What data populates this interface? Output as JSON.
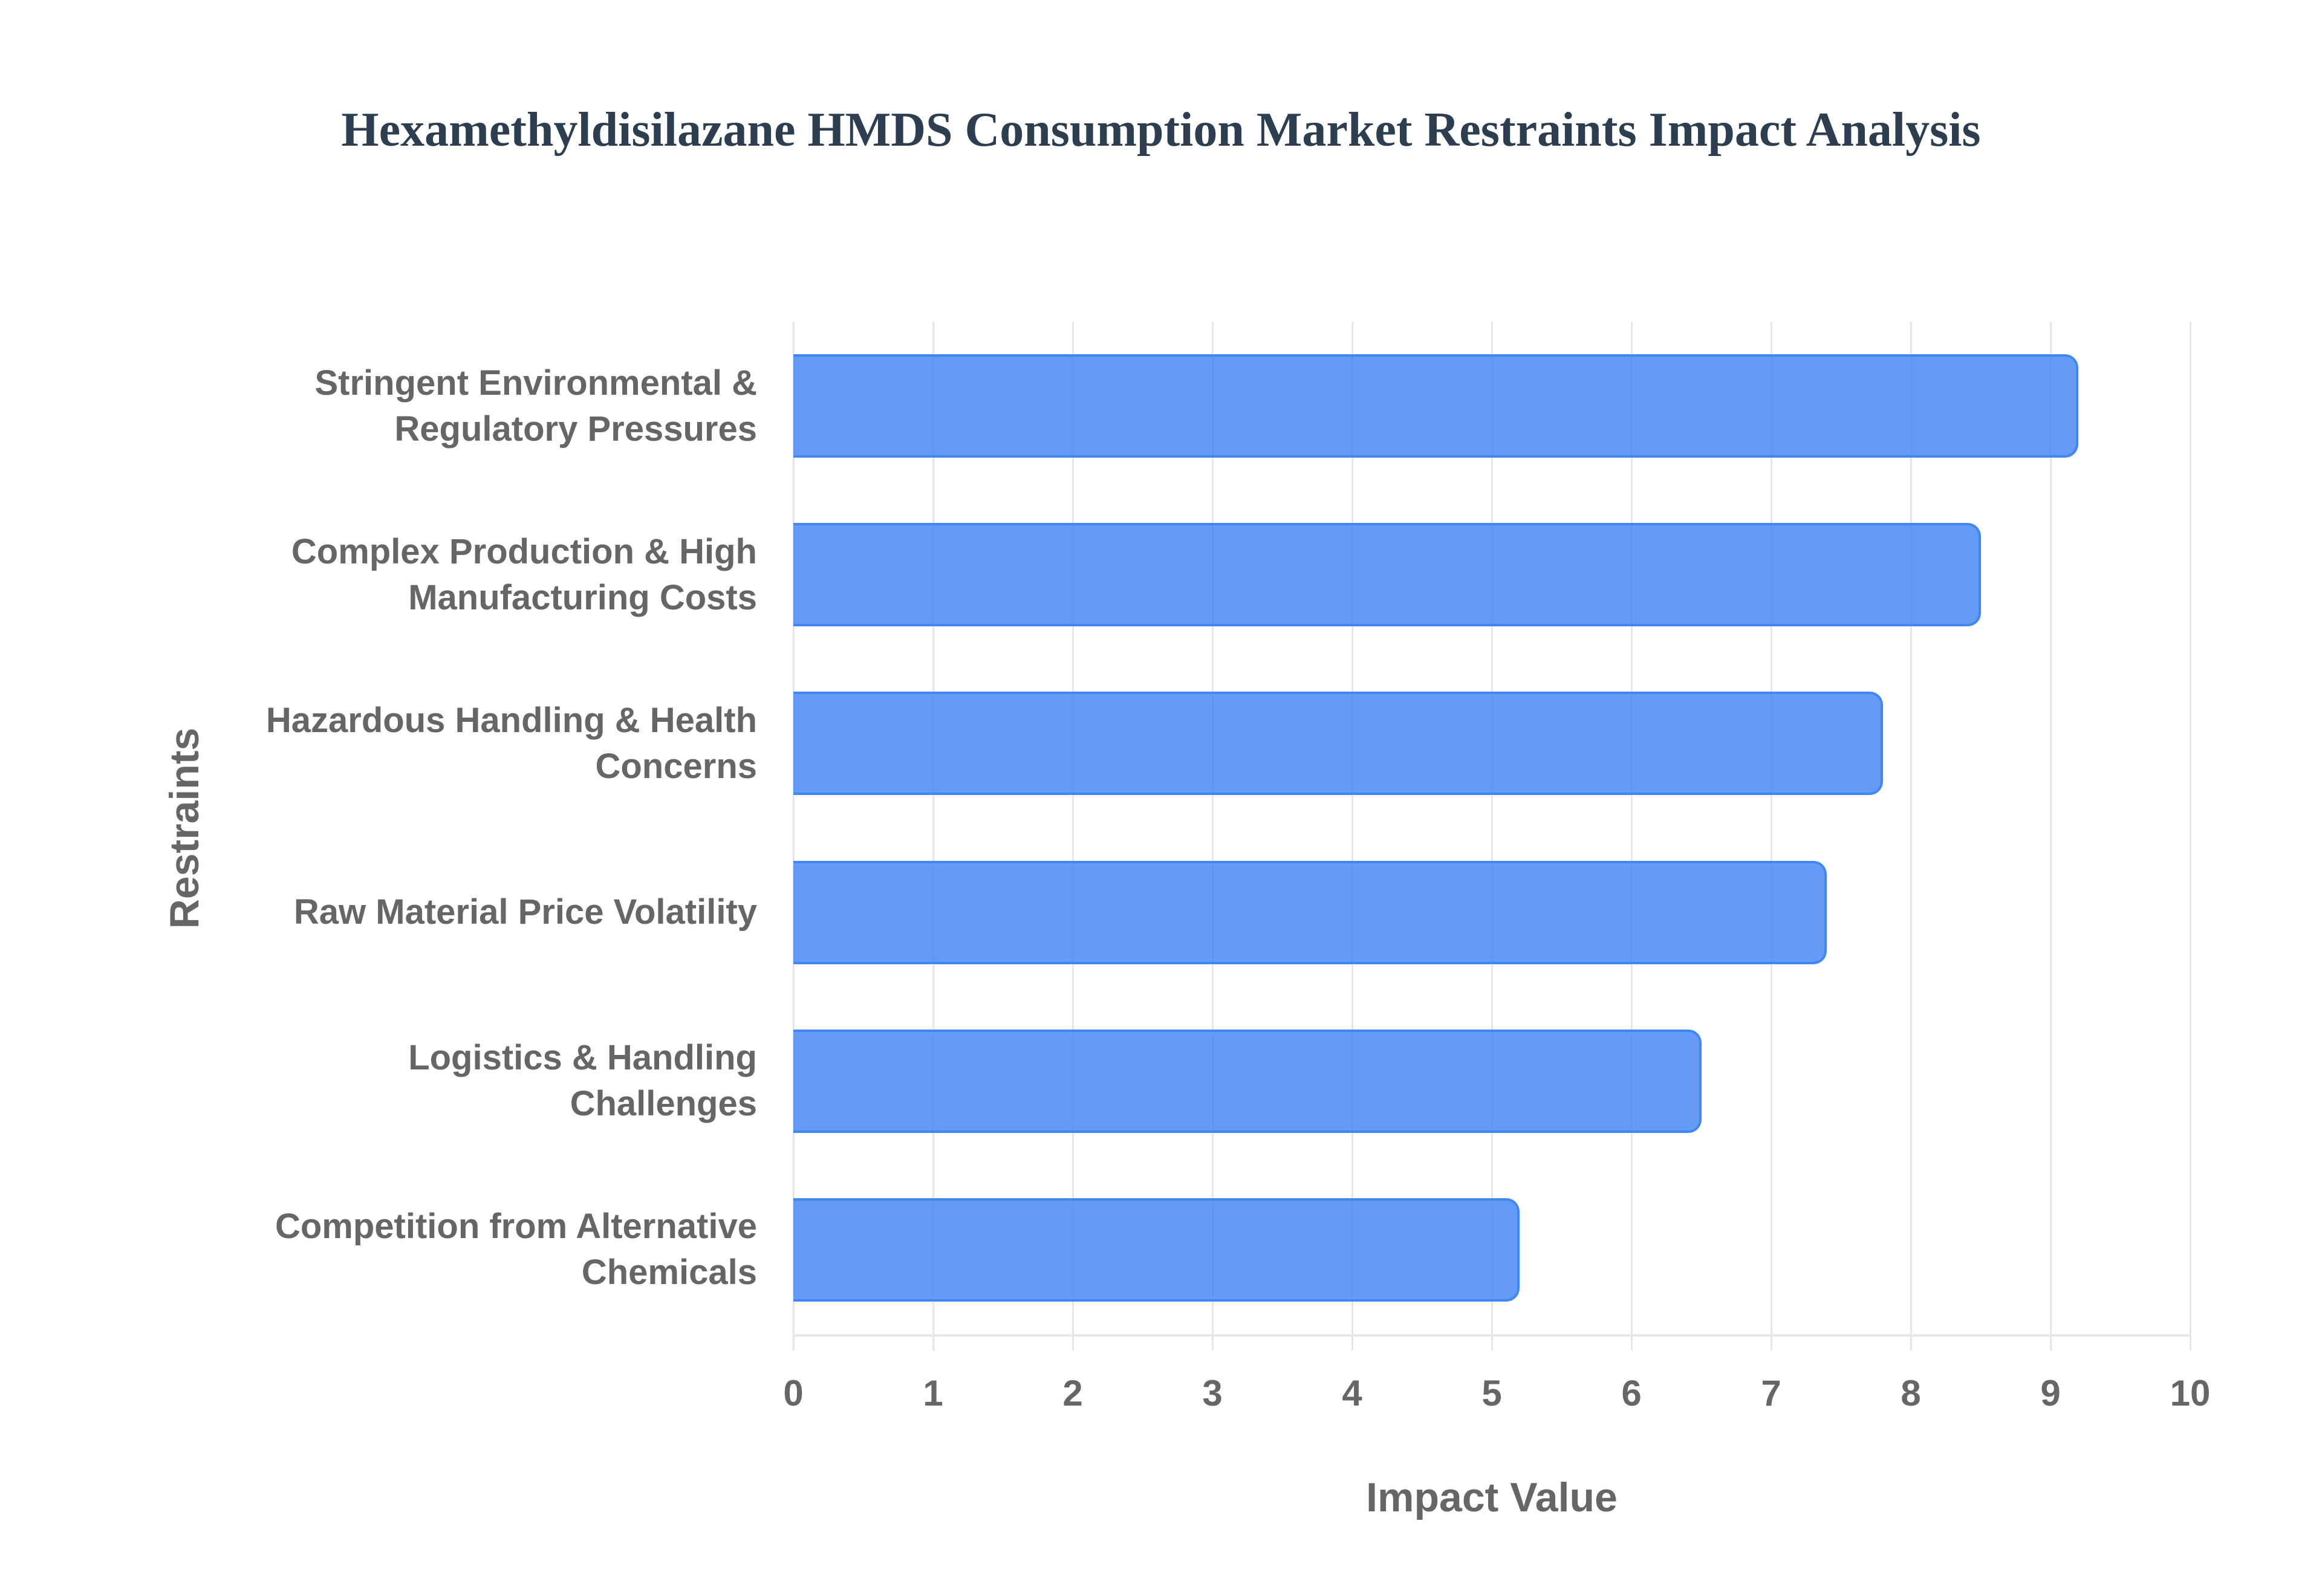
{
  "title": "Hexamethyldisilazane HMDS Consumption Market Restraints Impact Analysis",
  "colors": {
    "bar_fill": "#6399f5",
    "bar_border": "#4285f4",
    "title": "#2c3e50",
    "axis_text": "#666666",
    "grid": "#e6e6e6"
  },
  "chart_data": {
    "type": "bar",
    "orientation": "horizontal",
    "title": "Hexamethyldisilazane HMDS Consumption Market Restraints Impact Analysis",
    "xlabel": "Impact Value",
    "ylabel": "Restraints",
    "xlim": [
      0,
      10
    ],
    "xticks": [
      "0",
      "1",
      "2",
      "3",
      "4",
      "5",
      "6",
      "7",
      "8",
      "9",
      "10"
    ],
    "grid": true,
    "legend": "none",
    "categories": [
      "Stringent Environmental & Regulatory Pressures",
      "Complex Production & High Manufacturing Costs",
      "Hazardous Handling & Health Concerns",
      "Raw Material Price Volatility",
      "Logistics & Handling Challenges",
      "Competition from Alternative Chemicals"
    ],
    "category_lines": [
      [
        "Stringent Environmental &",
        "Regulatory Pressures"
      ],
      [
        "Complex Production & High",
        "Manufacturing Costs"
      ],
      [
        "Hazardous Handling & Health",
        "Concerns"
      ],
      [
        "Raw Material Price Volatility"
      ],
      [
        "Logistics & Handling",
        "Challenges"
      ],
      [
        "Competition from Alternative",
        "Chemicals"
      ]
    ],
    "values": [
      9.2,
      8.5,
      7.8,
      7.4,
      6.5,
      5.2
    ]
  }
}
